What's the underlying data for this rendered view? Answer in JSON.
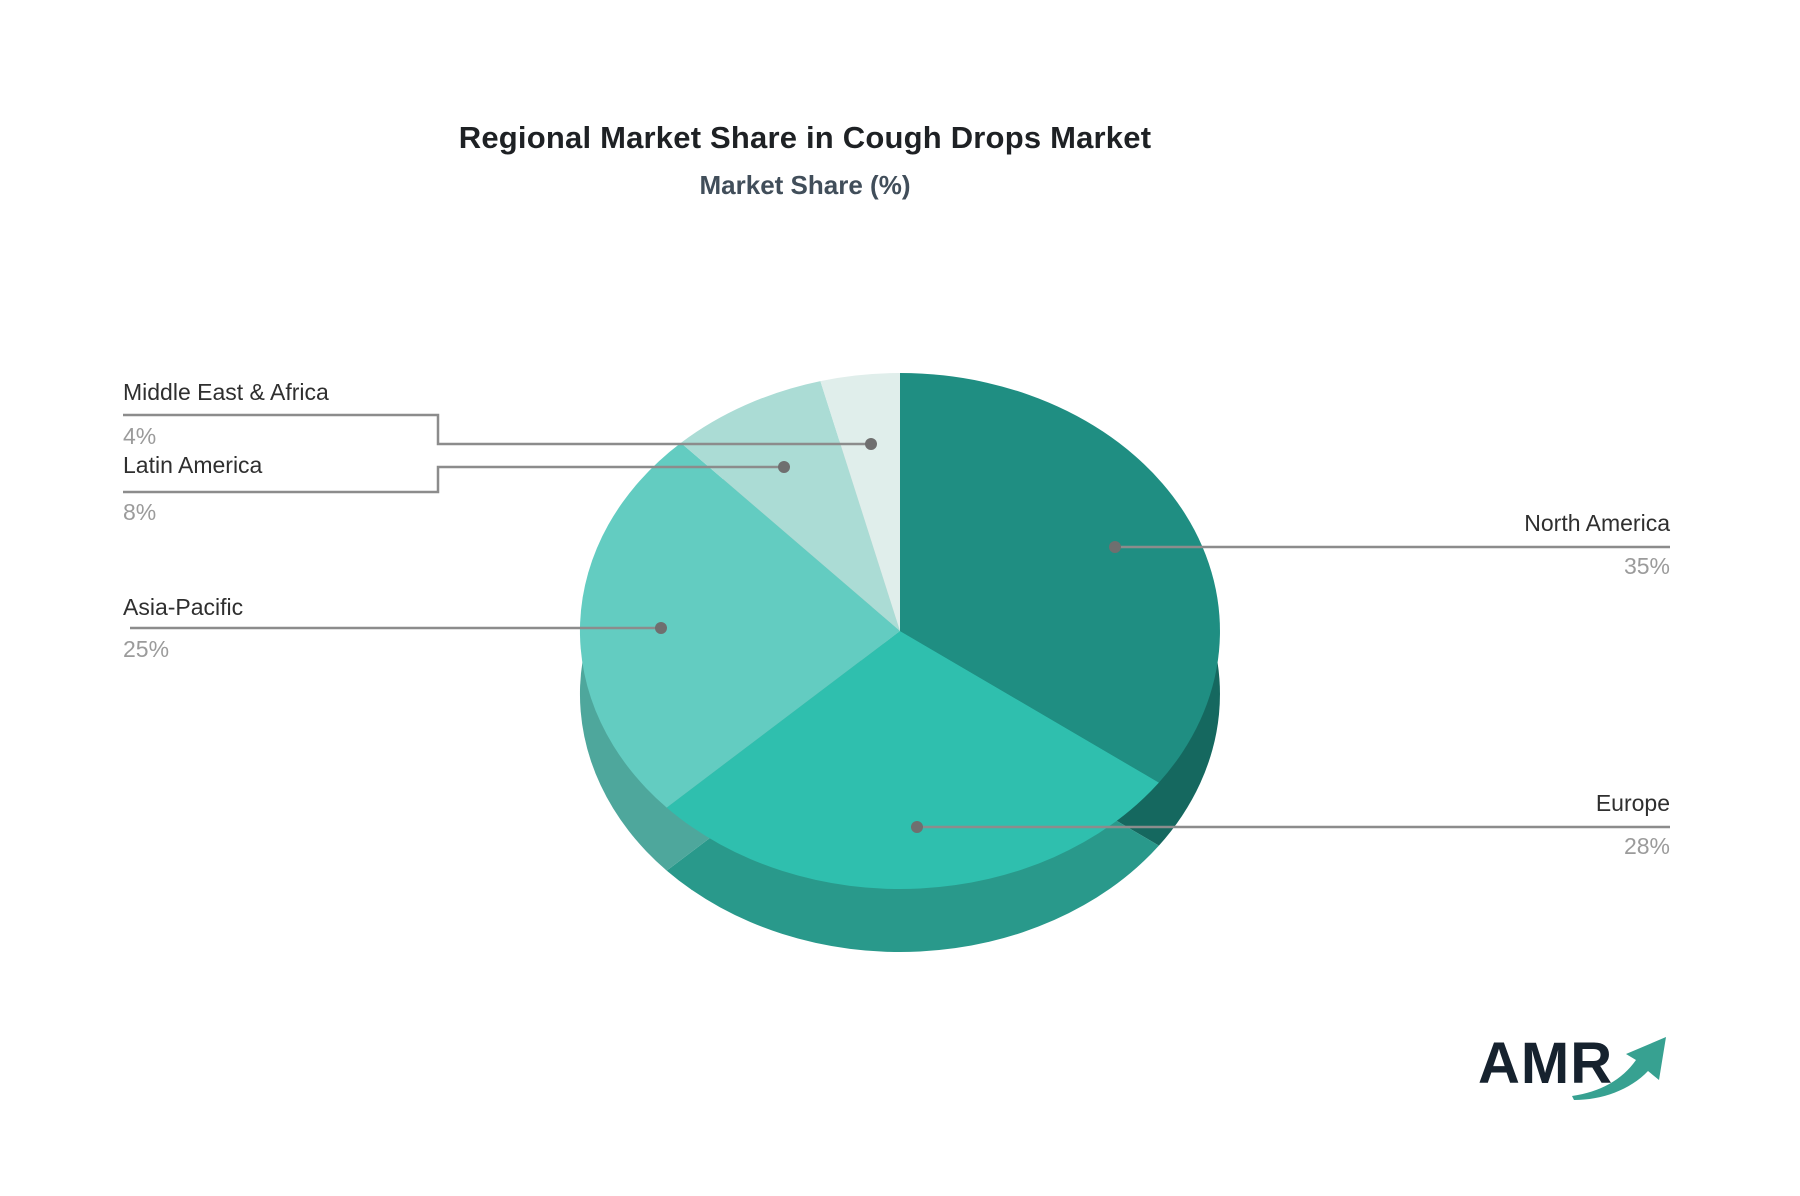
{
  "header": {
    "title": "Regional Market Share in Cough Drops Market",
    "subtitle": "Market Share (%)"
  },
  "chart_data": {
    "type": "pie",
    "style": "3d-pie",
    "title": "Regional Market Share in Cough Drops Market",
    "subtitle": "Market Share (%)",
    "unit": "%",
    "start_angle_deg": 0,
    "direction": "clockwise",
    "slices": [
      {
        "label": "North America",
        "value": 35,
        "display": "35%",
        "color": "#1F8E82",
        "side_color": "#15685F"
      },
      {
        "label": "Europe",
        "value": 28,
        "display": "28%",
        "color": "#2FBFAE",
        "side_color": "#29998B"
      },
      {
        "label": "Asia-Pacific",
        "value": 25,
        "display": "25%",
        "color": "#63CCC1",
        "side_color": "#4EA79C"
      },
      {
        "label": "Latin America",
        "value": 8,
        "display": "8%",
        "color": "#ABDCD5",
        "side_color": "#8FBCB5"
      },
      {
        "label": "Middle East & Africa",
        "value": 4,
        "display": "4%",
        "color": "#E0EEEB",
        "side_color": "#BCCFCA"
      }
    ],
    "legend_position": "callout-labels"
  },
  "logo": {
    "text": "AMR"
  },
  "colors": {
    "background": "#FFFFFF",
    "title_text": "#1E2124",
    "subtitle_text": "#414E5A",
    "label_text": "#2F2F2F",
    "percent_text": "#9B9B9B",
    "leader_line": "#8C8C8C",
    "leader_dot": "#6F6F6F",
    "logo_text": "#16222E",
    "logo_arrow": "#37A191"
  }
}
